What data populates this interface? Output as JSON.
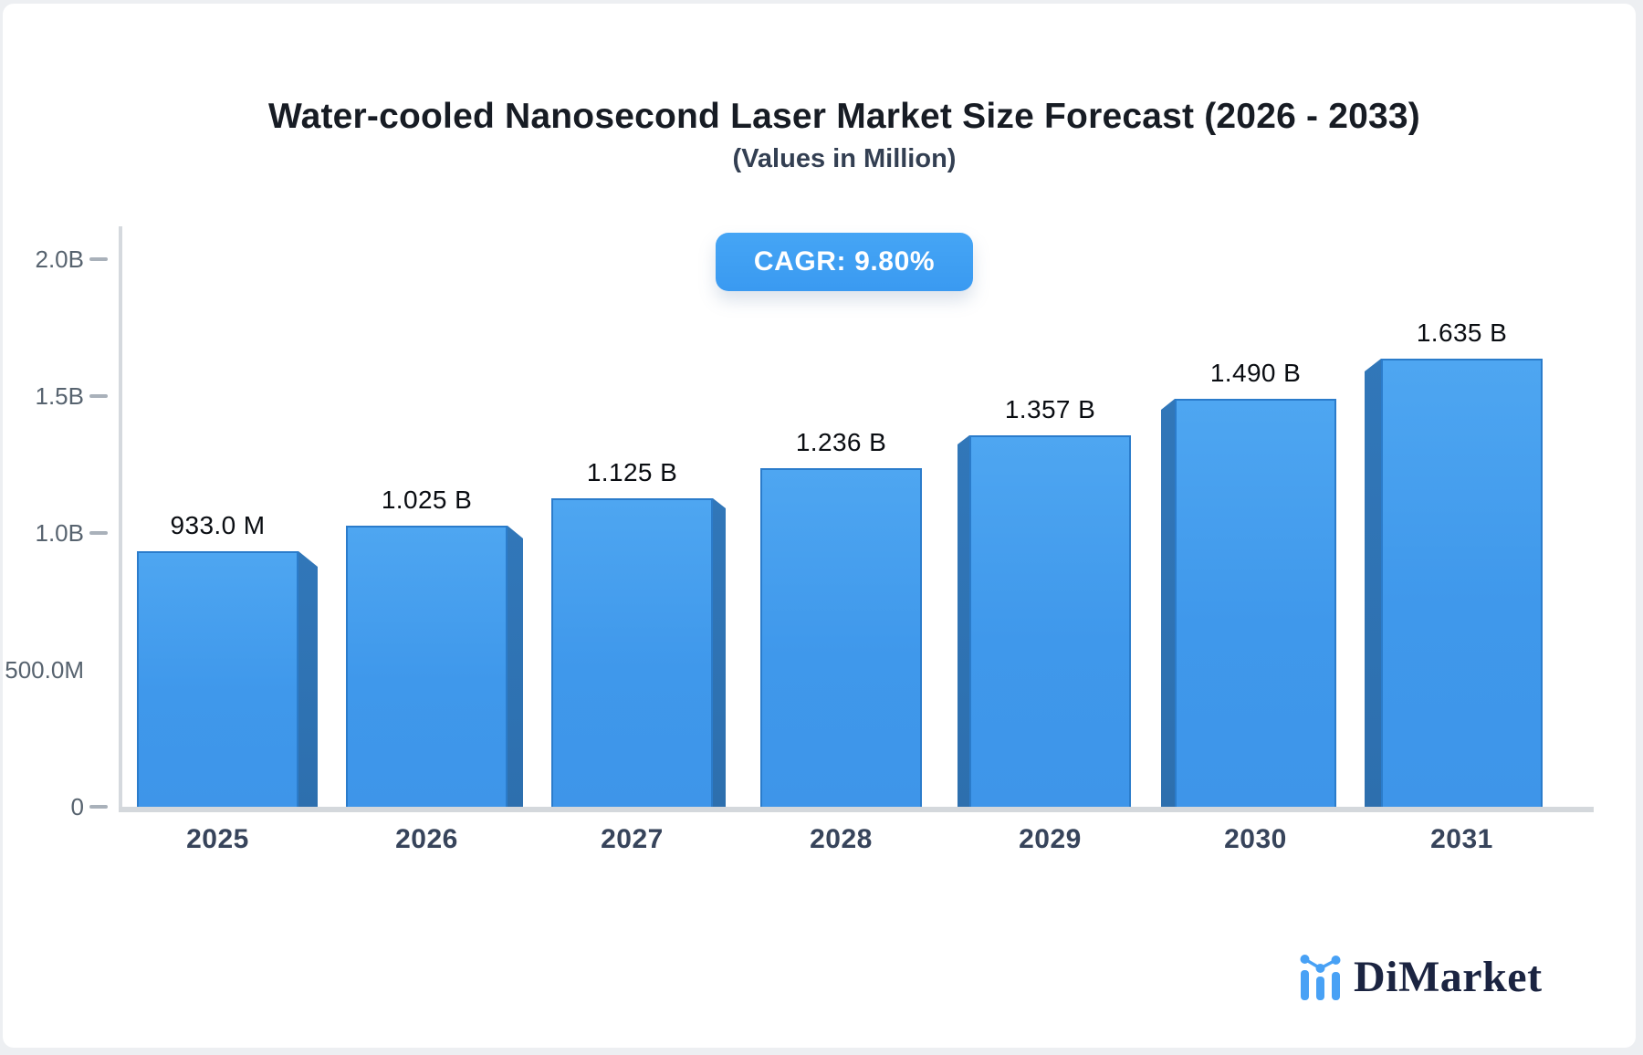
{
  "title": "Water-cooled Nanosecond Laser Market Size Forecast (2026 - 2033)",
  "subtitle": "(Values in Million)",
  "cagr_label": "CAGR: 9.80%",
  "brand": {
    "name": "DiMarket"
  },
  "colors": {
    "bar_face": "#4199EC",
    "bar_side": "#2E73B3",
    "badge_blue": "#3E9FF3",
    "axis_gray": "#D5D9DE",
    "logo_blue": "#48A1F5",
    "logo_navy": "#1B2441"
  },
  "chart_data": {
    "type": "bar",
    "title": "Water-cooled Nanosecond Laser Market Size Forecast (2026 - 2033)",
    "subtitle": "(Values in Million)",
    "xlabel": "",
    "ylabel": "",
    "unit": "USD, millions",
    "categories": [
      "2025",
      "2026",
      "2027",
      "2028",
      "2029",
      "2030",
      "2031"
    ],
    "values_millions": [
      933.0,
      1025,
      1125,
      1236,
      1357,
      1490,
      1635
    ],
    "value_labels": [
      "933.0 M",
      "1.025 B",
      "1.125 B",
      "1.236 B",
      "1.357 B",
      "1.490 B",
      "1.635 B"
    ],
    "ylim_millions": [
      0,
      2000
    ],
    "yticks": [
      {
        "label": "2.0B",
        "value_millions": 2000,
        "dash": true
      },
      {
        "label": "1.5B",
        "value_millions": 1500,
        "dash": true
      },
      {
        "label": "1.0B",
        "value_millions": 1000,
        "dash": true
      },
      {
        "label": "500.0M",
        "value_millions": 500,
        "dash": false
      },
      {
        "label": "0",
        "value_millions": 0,
        "dash": true
      }
    ],
    "grid": false,
    "legend": "none",
    "style": "pseudo-3d bars, perspective toward center"
  }
}
